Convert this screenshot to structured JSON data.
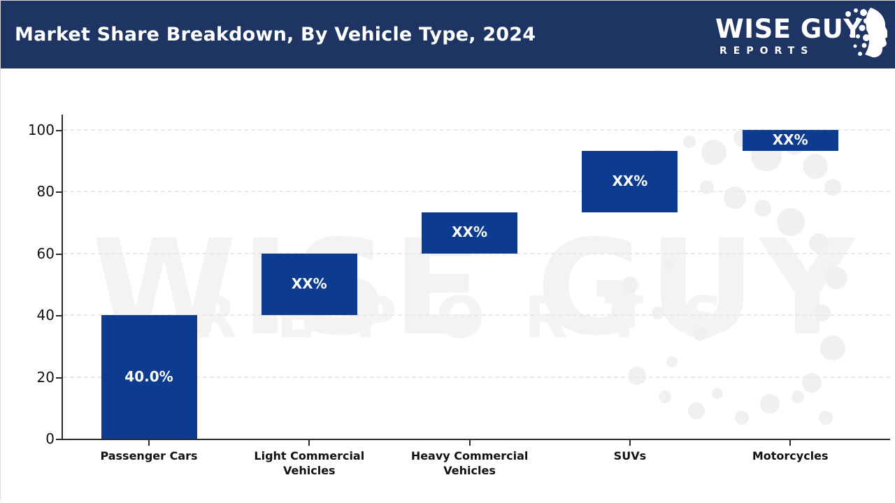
{
  "header": {
    "title": "Market Share Breakdown, By Vehicle Type, 2024",
    "logo": {
      "line1": "WISE GUY",
      "line2": "R E P O R T S"
    }
  },
  "watermark": {
    "line1": "WISE GUY",
    "line2": "REPORTS"
  },
  "colors": {
    "header_bg": "#1e3462",
    "bar": "#0c3b90",
    "grid": "#e9e9e9",
    "axis": "#2a2a2a",
    "watermark": "#f3f3f3",
    "frame_border": "#d9d9d9",
    "bar_label_text": "#ffffff"
  },
  "chart_data": {
    "type": "bar",
    "subtype": "waterfall",
    "title": "Market Share Breakdown, By Vehicle Type, 2024",
    "categories": [
      "Passenger Cars",
      "Light Commercial\nVehicles",
      "Heavy Commercial\nVehicles",
      "SUVs",
      "Motorcycles"
    ],
    "segments": [
      {
        "category": "Passenger Cars",
        "start": 0,
        "end": 40,
        "label": "40.0%"
      },
      {
        "category": "Light Commercial Vehicles",
        "start": 40,
        "end": 60,
        "label": "XX%"
      },
      {
        "category": "Heavy Commercial Vehicles",
        "start": 60,
        "end": 73.3,
        "label": "XX%"
      },
      {
        "category": "SUVs",
        "start": 73.3,
        "end": 93.3,
        "label": "XX%"
      },
      {
        "category": "Motorcycles",
        "start": 93.3,
        "end": 100,
        "label": "XX%"
      }
    ],
    "yticks": [
      0,
      20,
      40,
      60,
      80,
      100
    ],
    "ylim": [
      0,
      105
    ],
    "xlabel": "",
    "ylabel": "",
    "grid": "horizontal-dashed",
    "legend": "none"
  }
}
